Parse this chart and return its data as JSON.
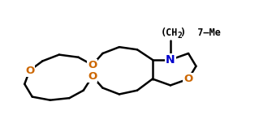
{
  "bg_color": "#ffffff",
  "line_color": "#000000",
  "N_color": "#0000cd",
  "O_color": "#cc6600",
  "line_width": 1.8,
  "figsize": [
    3.19,
    1.73
  ],
  "dpi": 100,
  "xlim": [
    0,
    9.5
  ],
  "ylim": [
    0,
    5.4
  ]
}
